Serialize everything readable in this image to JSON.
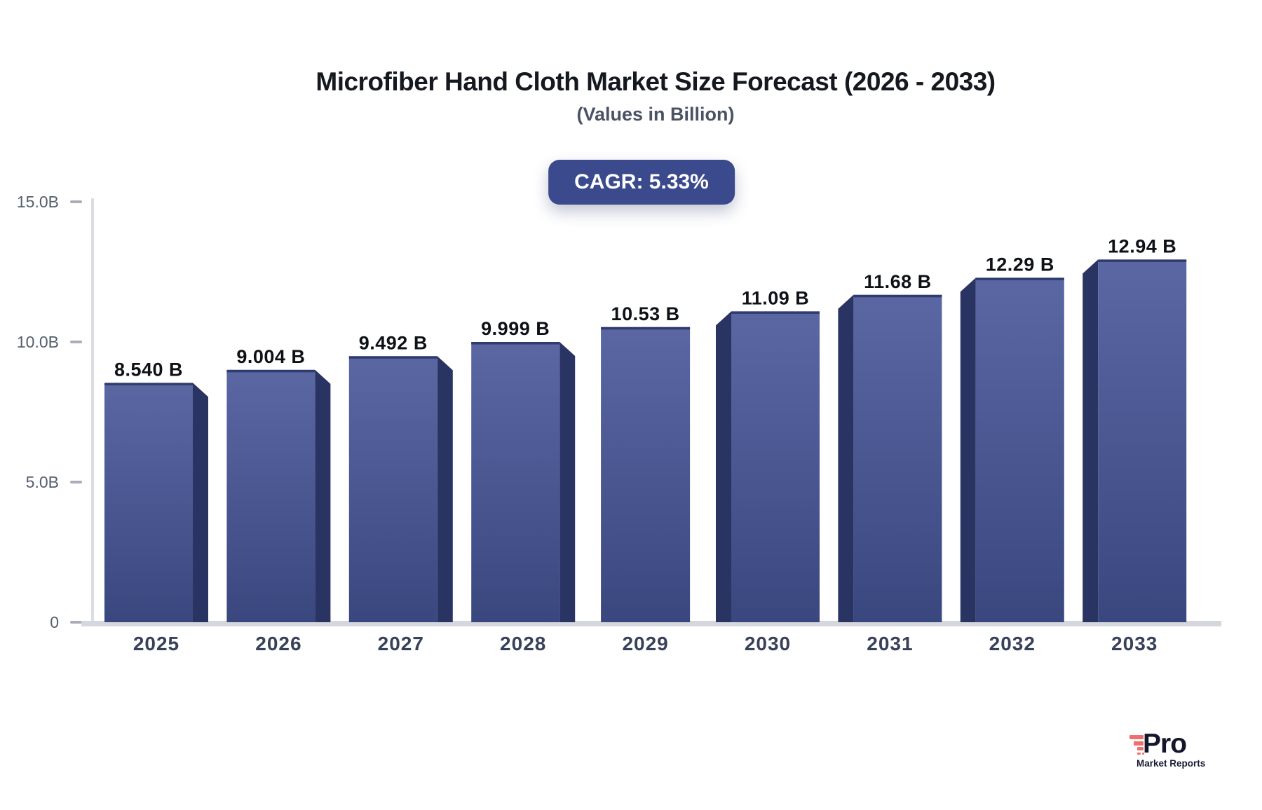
{
  "header": {
    "title": "Microfiber Hand Cloth Market Size Forecast (2026 - 2033)",
    "subtitle": "(Values in Billion)"
  },
  "badge": {
    "label": "CAGR: 5.33%"
  },
  "chart_data": {
    "type": "bar",
    "title": "Microfiber Hand Cloth Market Size Forecast (2026 - 2033)",
    "subtitle": "(Values in Billion)",
    "annotation": "CAGR: 5.33%",
    "categories": [
      "2025",
      "2026",
      "2027",
      "2028",
      "2029",
      "2030",
      "2031",
      "2032",
      "2033"
    ],
    "values": [
      8.54,
      9.004,
      9.492,
      9.999,
      10.53,
      11.09,
      11.68,
      12.29,
      12.94
    ],
    "value_labels": [
      "8.540 B",
      "9.004 B",
      "9.492 B",
      "9.999 B",
      "10.53 B",
      "11.09 B",
      "11.68 B",
      "12.29 B",
      "12.94 B"
    ],
    "xlabel": "",
    "ylabel": "",
    "ylim": [
      0,
      15
    ],
    "grid": false,
    "legend": "none",
    "y_ticks": [
      {
        "value": 0,
        "label": "0"
      },
      {
        "value": 5,
        "label": "5.0B"
      },
      {
        "value": 10,
        "label": "10.0B"
      },
      {
        "value": 15,
        "label": "15.0B"
      }
    ],
    "colors": {
      "bar_face_top": "#5A67A3",
      "bar_face_bottom": "#3A477F",
      "bar_side": "#2A3463",
      "bar_top_edge": "#2F3B6E",
      "axis_line": "#DBDDE2",
      "baseline": "#D4D7DD",
      "tick": "#A9AEB8",
      "y_label": "#555E6E",
      "x_label": "#38415A",
      "value_label": "#0E1116",
      "badge_bg": "#3A4A8C"
    }
  },
  "logo": {
    "name": "Pro",
    "tagline": "Market Reports",
    "accent_color": "#F07070"
  }
}
